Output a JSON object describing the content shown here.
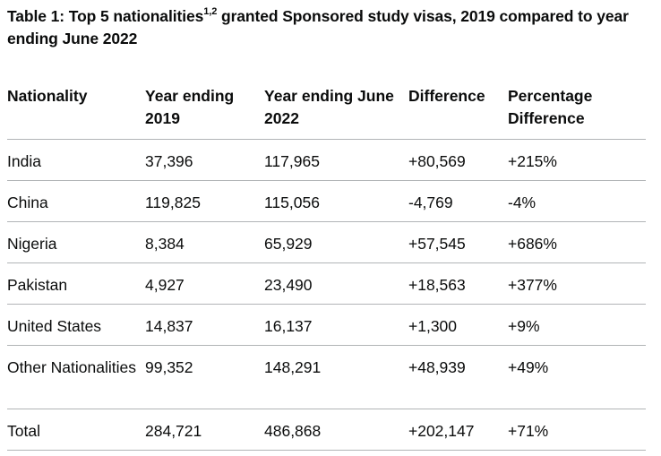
{
  "caption": {
    "prefix": "Table 1: Top 5 nationalities",
    "superscript": "1,2",
    "suffix": " granted Sponsored study visas, 2019 compared to year ending June 2022"
  },
  "table": {
    "headers": {
      "nationality": "Nationality",
      "year_2019": "Year ending 2019",
      "year_2022": "Year ending June 2022",
      "difference": "Difference",
      "percentage": "Percentage Difference"
    },
    "rows": [
      {
        "nationality": "India",
        "year_2019": "37,396",
        "year_2022": "117,965",
        "difference": "+80,569",
        "percentage": "+215%"
      },
      {
        "nationality": "China",
        "year_2019": "119,825",
        "year_2022": "115,056",
        "difference": "-4,769",
        "percentage": "-4%"
      },
      {
        "nationality": "Nigeria",
        "year_2019": "8,384",
        "year_2022": "65,929",
        "difference": "+57,545",
        "percentage": "+686%"
      },
      {
        "nationality": "Pakistan",
        "year_2019": "4,927",
        "year_2022": "23,490",
        "difference": "+18,563",
        "percentage": "+377%"
      },
      {
        "nationality": "United States",
        "year_2019": "14,837",
        "year_2022": "16,137",
        "difference": "+1,300",
        "percentage": "+9%"
      },
      {
        "nationality": "Other Nationalities",
        "year_2019": "99,352",
        "year_2022": "148,291",
        "difference": "+48,939",
        "percentage": "+49%"
      },
      {
        "nationality": "Total",
        "year_2019": "284,721",
        "year_2022": "486,868",
        "difference": "+202,147",
        "percentage": "+71%"
      }
    ]
  }
}
